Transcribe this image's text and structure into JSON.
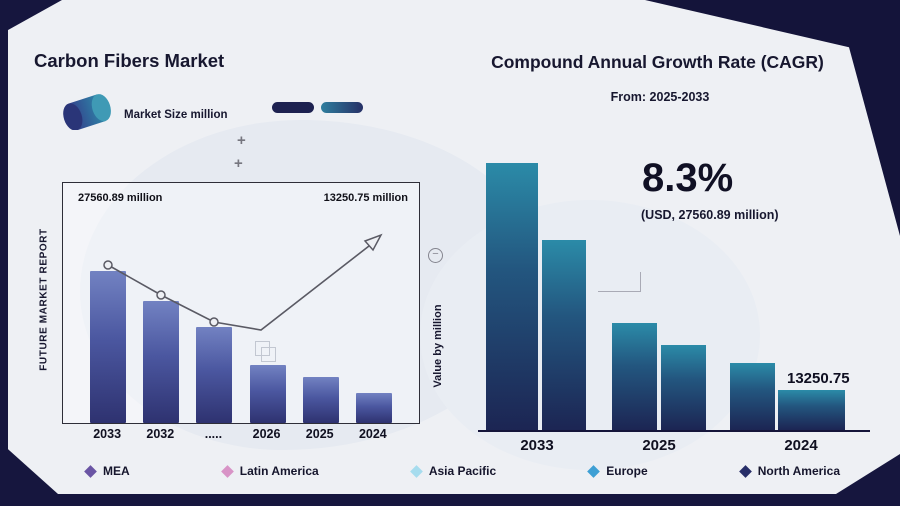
{
  "window": {
    "bg": "#eef0f4",
    "accent_dark": "#16163e",
    "accent_teal": "#2b8ba8"
  },
  "left_panel": {
    "title": "Carbon Fibers Market",
    "legend_label": "Market Size million",
    "side_label": "FUTURE MARKET REPORT",
    "axis_label": "Value by million",
    "annotation_left": "27560.89 million",
    "annotation_right": "13250.75 million"
  },
  "right_panel": {
    "title": "Compound Annual Growth Rate (CAGR)",
    "subtitle": "From: 2025-2033",
    "cagr_value": "8.3%",
    "cagr_detail": "(USD, 27560.89 million)",
    "end_value_label": "13250.75"
  },
  "decor": {
    "plus": "+",
    "minus": "−"
  },
  "region_legend": [
    {
      "label": "MEA",
      "color": "#6a55a4"
    },
    {
      "label": "Latin America",
      "color": "#d893c6"
    },
    {
      "label": "Asia Pacific",
      "color": "#a6dcee"
    },
    {
      "label": "Europe",
      "color": "#3e9fd4"
    },
    {
      "label": "North America",
      "color": "#272e68"
    }
  ],
  "chart_data": [
    {
      "type": "bar",
      "title": "Carbon Fibers Market — Market Size million",
      "ylabel": "Value by million",
      "categories": [
        "2033",
        "2032",
        ".....",
        "2026",
        "2025",
        "2024"
      ],
      "values": [
        27560.89,
        null,
        null,
        null,
        null,
        13250.75
      ],
      "bar_heights_pct": [
        100,
        80,
        63,
        38,
        30,
        20
      ],
      "annotations": [
        "27560.89 million (2033 forecast)",
        "13250.75 million (2024 base)"
      ],
      "overlay": "declining marker line turning into rising arrow"
    },
    {
      "type": "bar",
      "title": "Compound Annual Growth Rate (CAGR)",
      "subtitle": "From: 2025-2033",
      "cagr_pct": 8.3,
      "cagr_note": "(USD, 27560.89 million)",
      "categories": [
        "2033",
        "2025",
        "2024"
      ],
      "series": [
        {
          "name": "primary",
          "values": [
            27560.89,
            null,
            13250.75
          ]
        },
        {
          "name": "secondary",
          "values": [
            null,
            null,
            null
          ]
        }
      ],
      "bar_heights_pct": [
        [
          100,
          71
        ],
        [
          40,
          32
        ],
        [
          25,
          15
        ]
      ],
      "value_label": "13250.75"
    }
  ]
}
